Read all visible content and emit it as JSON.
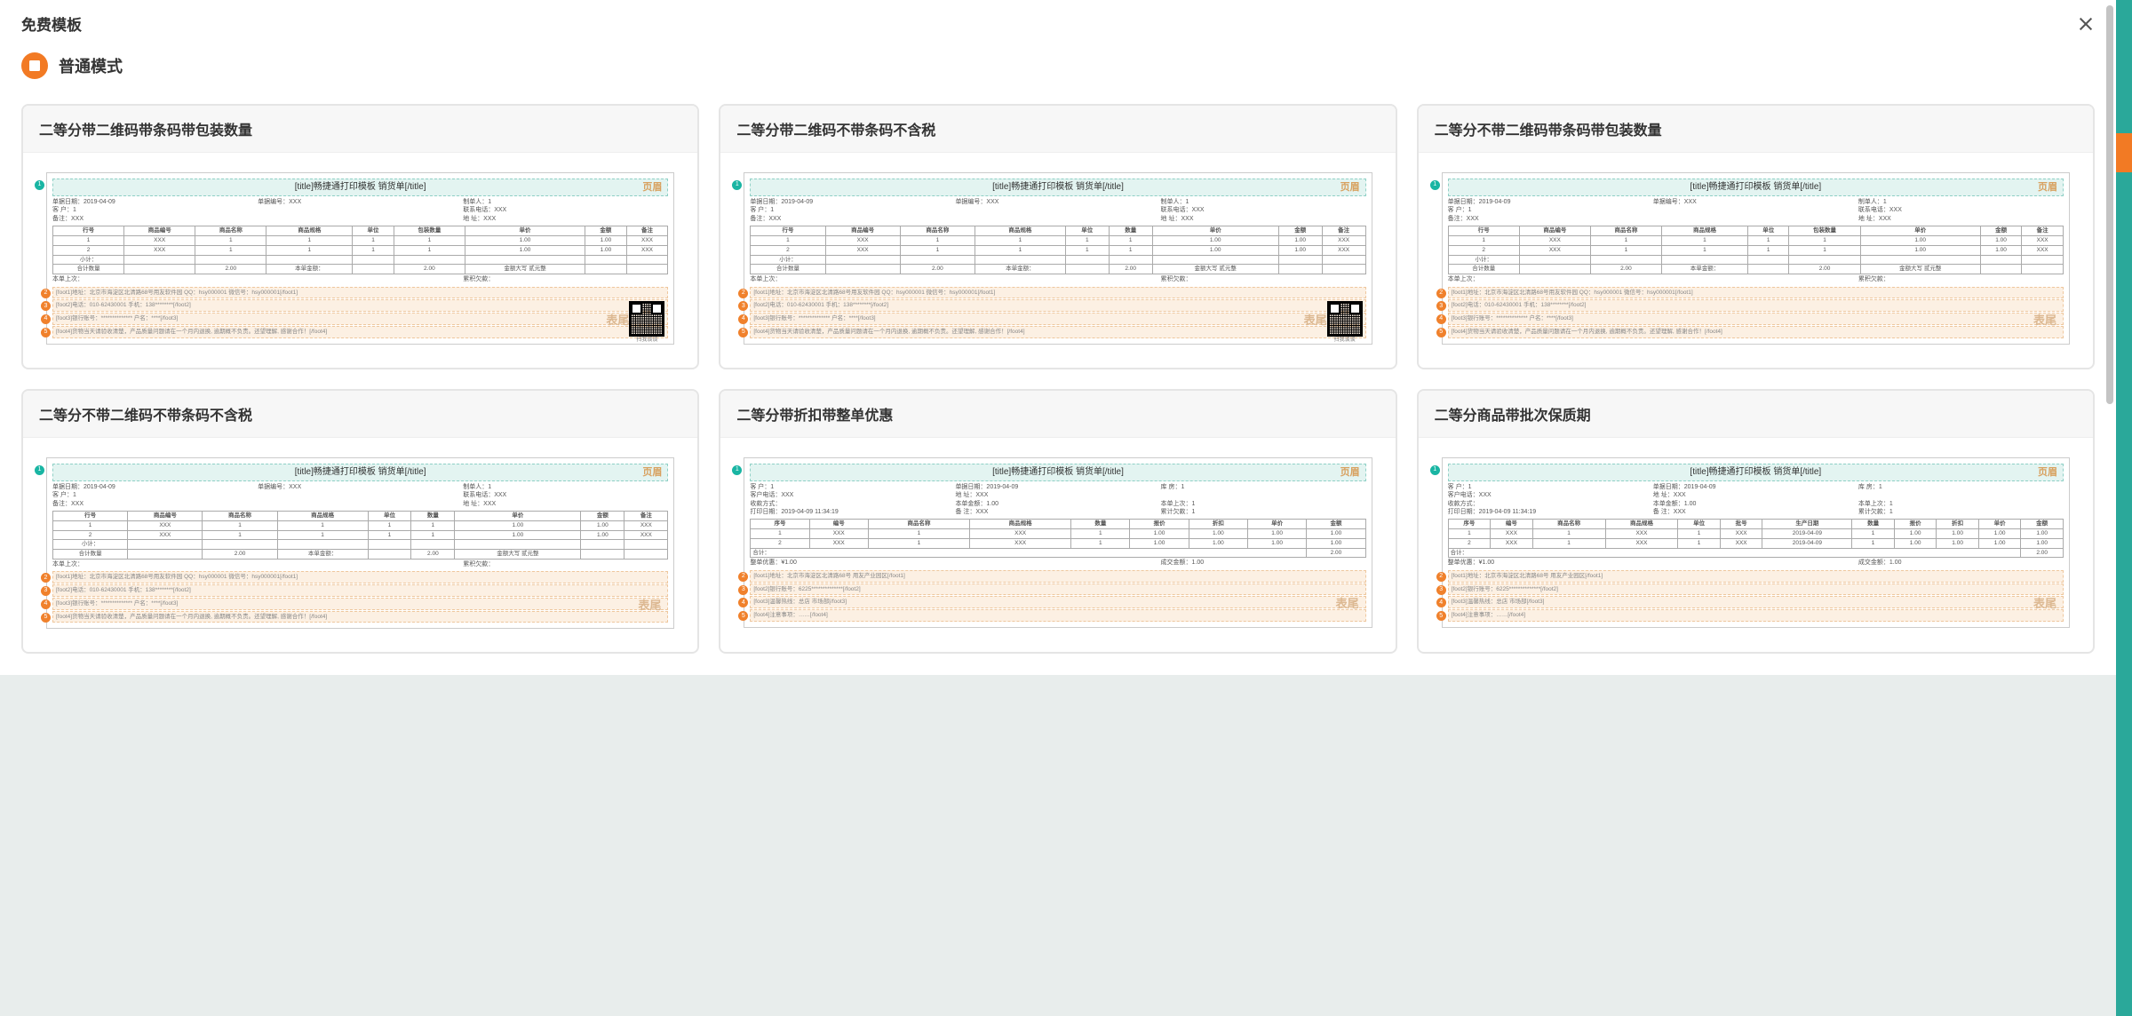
{
  "modal": {
    "title": "免费模板",
    "mode_label": "普通模式"
  },
  "cards": [
    {
      "title": "二等分带二维码带条码带包装数量",
      "qr": true
    },
    {
      "title": "二等分带二维码不带条码不含税",
      "qr": true
    },
    {
      "title": "二等分不带二维码带条码带包装数量",
      "qr": false
    },
    {
      "title": "二等分不带二维码不带条码不含税",
      "qr": false,
      "bottom": true
    },
    {
      "title": "二等分带折扣带整单优惠",
      "qr": false,
      "bottom": true
    },
    {
      "title": "二等分商品带批次保质期",
      "qr": false,
      "bottom": true
    }
  ],
  "tpl": {
    "title": "[title]畅捷通打印模板 销货单[/title]",
    "header_tag": "页眉",
    "meta": {
      "date_l": "单据日期：",
      "date_v": "2019-04-09",
      "no_l": "单据编号：",
      "no_v": "XXX",
      "maker_l": "制单人：",
      "maker_v": "1",
      "cust_l": "客 户：",
      "cust_v": "1",
      "tel_l": "联系电话：",
      "tel_v": "XXX",
      "addr_l": "地 址：",
      "addr_v": "XXX",
      "note_l": "备注：",
      "note_v": "XXX"
    },
    "cols_a": [
      "行号",
      "商品编号",
      "商品名称",
      "商品规格",
      "单位",
      "数量",
      "单价",
      "金额",
      "备注"
    ],
    "cols_b": [
      "行号",
      "商品编号",
      "商品名称",
      "商品规格",
      "单位",
      "包装数量",
      "单价",
      "金额",
      "备注"
    ],
    "rows": [
      [
        "1",
        "XXX",
        "1",
        "1",
        "1",
        "1",
        "1.00",
        "1.00",
        "XXX"
      ],
      [
        "2",
        "XXX",
        "1",
        "1",
        "1",
        "1",
        "1.00",
        "1.00",
        "XXX"
      ]
    ],
    "sub": [
      "小计：",
      "",
      "",
      "",
      "",
      "",
      "",
      "",
      ""
    ],
    "sum": [
      "合计数量",
      "",
      "2.00",
      "本单金额：",
      "",
      "2.00",
      "金额大写 贰元整",
      "",
      ""
    ],
    "ext": "本单上次：",
    "ext2": "累积欠款：",
    "foot1": "[foot1]地址：北京市海淀区北清路68号用友软件园 QQ：hsy000001 微信号：hsy000001[/foot1]",
    "foot2": "[foot2]电话：010-62430001       手机：138********[/foot2]",
    "foot3": "[foot3]银行账号：**************   户名：****[/foot3]",
    "foot4": "[foot4]货物当天请验收清楚，产品质量问题请在一个月内退换, 逾期概不负责。还望理解, 感谢合作！[/foot4]",
    "foot_tag": "表尾",
    "qr_cap": "扫我谈谈",
    "deal_l": "整单优惠：¥",
    "deal_v": "1.00",
    "amt_l": "成交金额：",
    "amt_v": "1.00",
    "foot_b1": "[foot1]地址：北京市海淀区北清路68号 用友产业园区[/foot1]",
    "foot_b2": "[foot2]银行账号：6225**************[/foot2]",
    "foot_b3": "[foot3]温馨热线：总店 市场部[/foot3]",
    "foot_b4": "[foot4]注意事项：……[/foot4]"
  },
  "tpl_b": {
    "meta": {
      "cust": "客 户：1",
      "date": "单据日期：2019-04-09",
      "wh": "库 房：1",
      "tel": "客户电话：XXX",
      "addr": "地 址：XXX",
      "rec": "收款方式：",
      "amt": "本单金额：1.00",
      "last": "本单上次：1",
      "owe": "累计欠款：1",
      "prt": "打印日期：2019-04-09 11:34:19",
      "note": "备 注：XXX"
    },
    "cols5": [
      "序号",
      "编号",
      "商品名称",
      "商品规格",
      "数量",
      "报价",
      "折扣",
      "单价",
      "金额"
    ],
    "cols6": [
      "序号",
      "编号",
      "商品名称",
      "商品规格",
      "单位",
      "批号",
      "生产日期",
      "数量",
      "报价",
      "折扣",
      "单价",
      "金额"
    ],
    "rows5": [
      [
        "1",
        "XXX",
        "1",
        "XXX",
        "1",
        "1.00",
        "1.00",
        "1.00",
        "1.00"
      ],
      [
        "2",
        "XXX",
        "1",
        "XXX",
        "1",
        "1.00",
        "1.00",
        "1.00",
        "1.00"
      ]
    ],
    "rows6": [
      [
        "1",
        "XXX",
        "1",
        "XXX",
        "1",
        "XXX",
        "2019-04-09",
        "1",
        "1.00",
        "1.00",
        "1.00",
        "1.00"
      ],
      [
        "2",
        "XXX",
        "1",
        "XXX",
        "1",
        "XXX",
        "2019-04-09",
        "1",
        "1.00",
        "1.00",
        "1.00",
        "1.00"
      ]
    ],
    "sum": "合计：",
    "sum_v": "2.00"
  }
}
